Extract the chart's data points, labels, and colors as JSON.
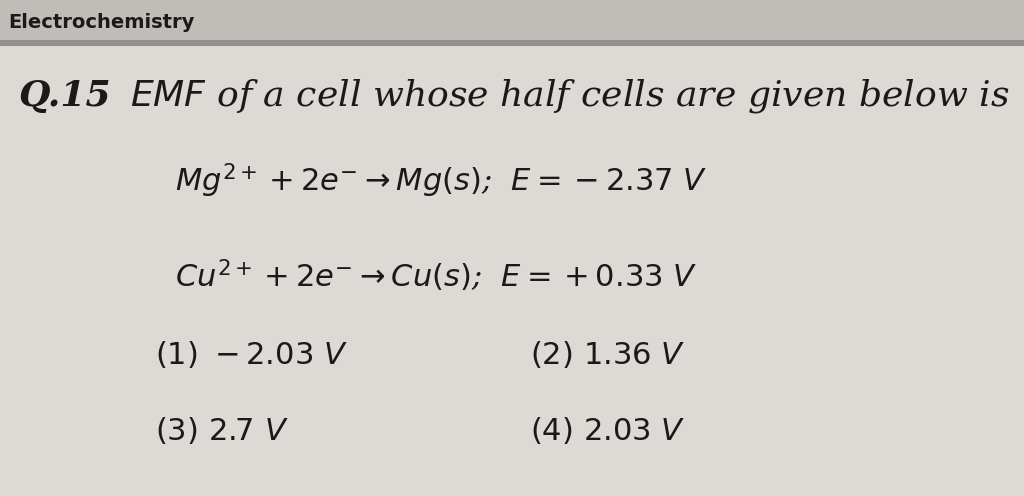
{
  "background_color": "#d8d4cf",
  "page_color": "#e8e5e0",
  "header_text": "Electrochemistry",
  "header_bg_top": "#c8c5c0",
  "header_bg_bottom": "#b0adaa",
  "header_font_size": 14,
  "header_font_weight": "bold",
  "question_number": "Q.15",
  "question_font_size": 26,
  "eq_font_size": 22,
  "opt_font_size": 22,
  "text_color": "#1a1a1a"
}
